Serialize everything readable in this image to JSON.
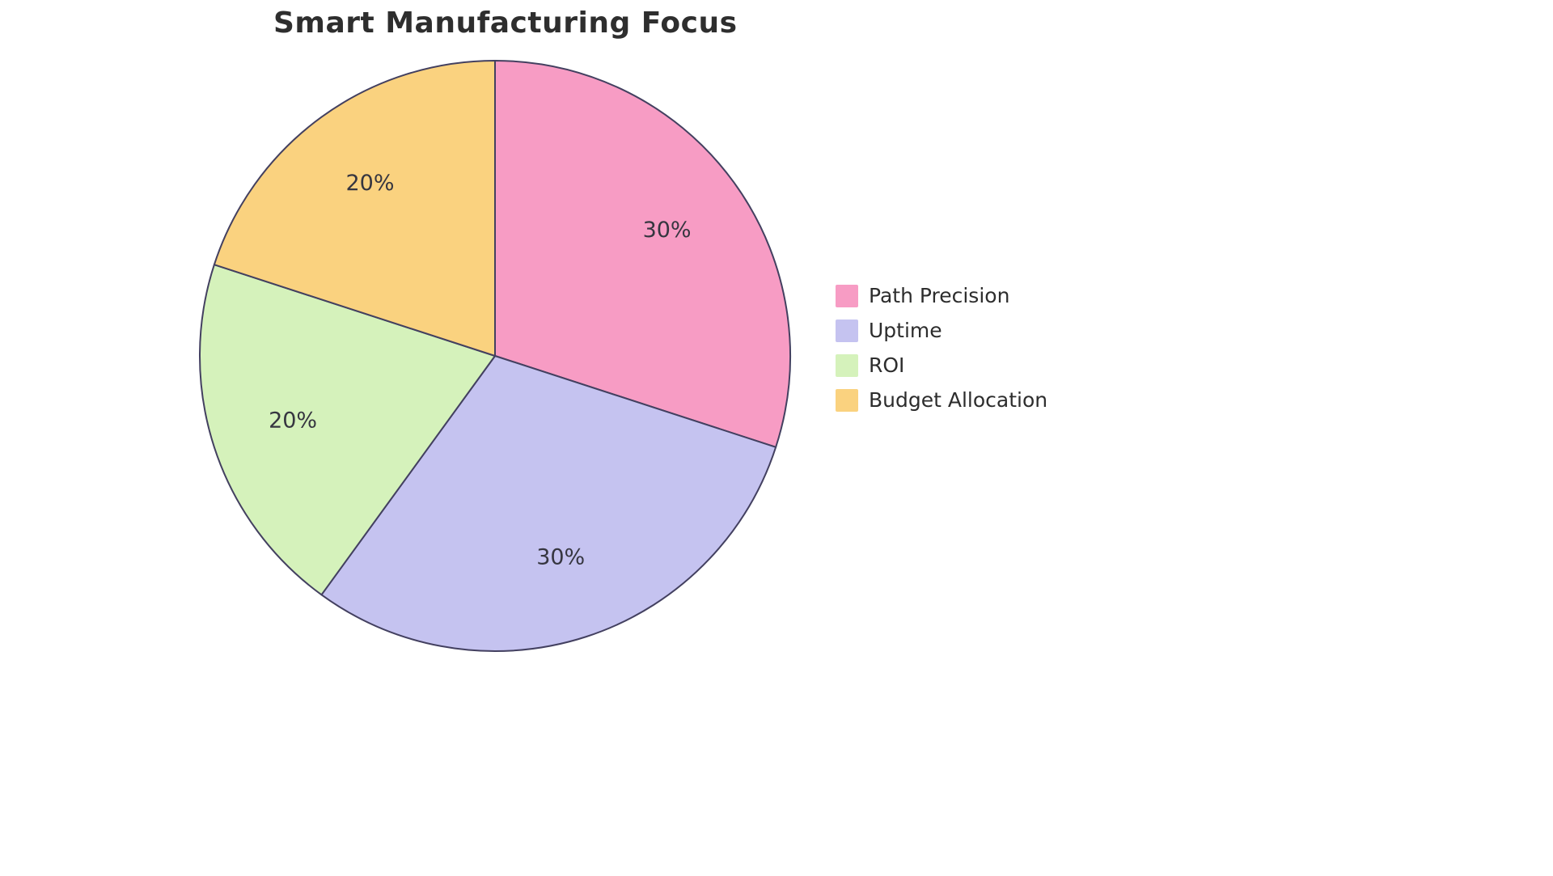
{
  "chart_data": {
    "type": "pie",
    "title": "Smart Manufacturing Focus",
    "labels": [
      "Path Precision",
      "Uptime",
      "ROI",
      "Budget Allocation"
    ],
    "values": [
      30,
      30,
      20,
      20
    ],
    "percent_labels": [
      "30%",
      "30%",
      "20%",
      "20%"
    ],
    "colors": [
      "#F79CC4",
      "#C5C3F0",
      "#D5F2BB",
      "#FAD27F"
    ],
    "stroke_color": "#434060",
    "label_color": "#363640",
    "title_color": "#2E2E2E",
    "background": "#FFFFFF",
    "legend_position": "right",
    "start_angle_deg": -90,
    "direction": "clockwise",
    "label_radius_ratio": 0.72
  }
}
